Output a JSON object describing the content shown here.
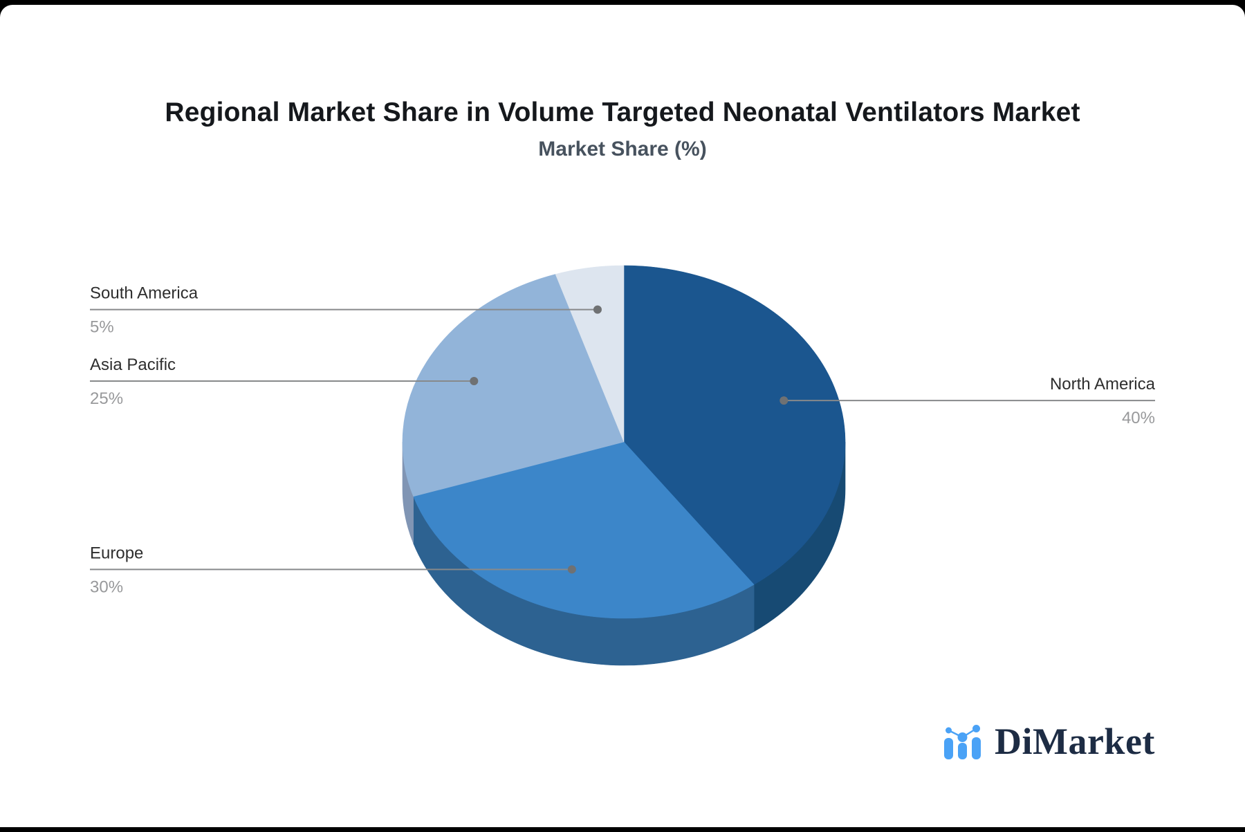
{
  "page": {
    "background": "#000000",
    "card_background": "#ffffff"
  },
  "chart_data": {
    "type": "pie",
    "title": "Regional Market Share in Volume Targeted Neonatal Ventilators Market",
    "subtitle": "Market Share (%)",
    "unit": "%",
    "start_angle_deg": 0,
    "clockwise": true,
    "legend_position": "none",
    "labels": "outside-with-leader-lines",
    "effect_3d": true,
    "segments": [
      {
        "label": "North America",
        "value": 40,
        "display": "40%",
        "color": "#1b568f",
        "side_color": "#174a73"
      },
      {
        "label": "Europe",
        "value": 30,
        "display": "30%",
        "color": "#3c86c9",
        "side_color": "#2d6291"
      },
      {
        "label": "Asia Pacific",
        "value": 25,
        "display": "25%",
        "color": "#92b4d9",
        "side_color": "#8095b4"
      },
      {
        "label": "South America",
        "value": 5,
        "display": "5%",
        "color": "#dde5ef",
        "side_color": "#c3cedd"
      }
    ],
    "label_style": {
      "name_color": "#2e2e2e",
      "value_color": "#98999b",
      "line_color": "#87898b",
      "dot_color": "#6f7173"
    }
  },
  "logo": {
    "icon": "bar-chart-trend-icon",
    "icon_color": "#4aa2f6",
    "text": "DiMarket",
    "text_color": "#1d2c44"
  }
}
